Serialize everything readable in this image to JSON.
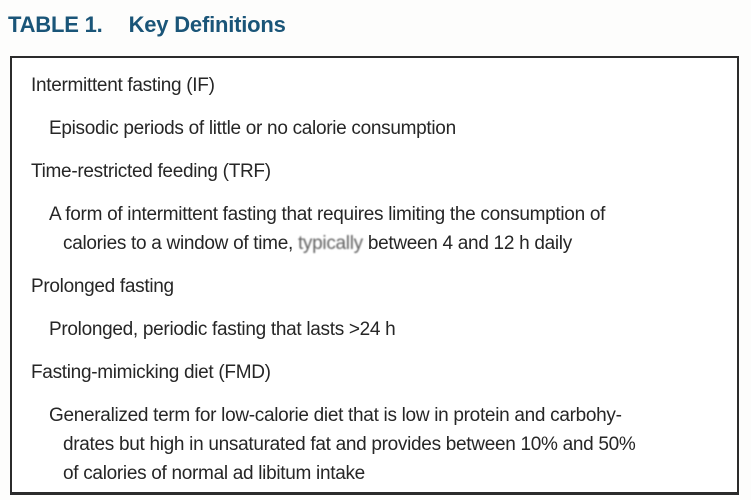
{
  "header": {
    "label": "TABLE 1.",
    "title": "Key Definitions"
  },
  "table": {
    "entries": [
      {
        "term": "Intermittent fasting (IF)",
        "definition_lines": [
          "Episodic periods of little or no calorie consumption"
        ]
      },
      {
        "term": "Time-restricted feeding (TRF)",
        "definition_lines": [
          "A form of intermittent fasting that requires limiting the consumption of"
        ],
        "definition_line_2": {
          "pre": "calories to a window of time, ",
          "faded_word": "typically",
          "post": " between 4 and 12 h daily"
        }
      },
      {
        "term": "Prolonged fasting",
        "definition_lines": [
          "Prolonged, periodic fasting that lasts >24 h"
        ]
      },
      {
        "term": "Fasting-mimicking diet (FMD)",
        "definition_lines": [
          "Generalized term for low-calorie diet that is low in protein and carbohy-",
          "drates but high in unsaturated fat and provides between 10% and 50%",
          "of calories of normal ad libitum intake"
        ]
      }
    ]
  },
  "colors": {
    "title_accent": "#1a5578",
    "body_text": "#262626",
    "box_border": "#2b2b2b"
  }
}
